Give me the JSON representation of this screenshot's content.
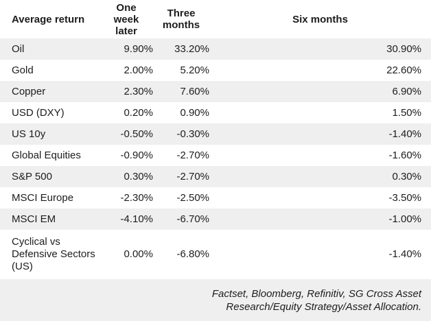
{
  "colors": {
    "stripe": "#efefef",
    "text": "#1c1c1c",
    "background": "#ffffff"
  },
  "table": {
    "headers": {
      "average_return": "Average return",
      "one_week": "One week later",
      "three_months": "Three months",
      "six_months": "Six months"
    },
    "rows": [
      {
        "label": "Oil",
        "one_week": "9.90%",
        "three_months": "33.20%",
        "six_months": "30.90%"
      },
      {
        "label": "Gold",
        "one_week": "2.00%",
        "three_months": "5.20%",
        "six_months": "22.60%"
      },
      {
        "label": "Copper",
        "one_week": "2.30%",
        "three_months": "7.60%",
        "six_months": "6.90%"
      },
      {
        "label": "USD (DXY)",
        "one_week": "0.20%",
        "three_months": "0.90%",
        "six_months": "1.50%"
      },
      {
        "label": "US 10y",
        "one_week": "-0.50%",
        "three_months": "-0.30%",
        "six_months": "-1.40%"
      },
      {
        "label": "Global Equities",
        "one_week": "-0.90%",
        "three_months": "-2.70%",
        "six_months": "-1.60%"
      },
      {
        "label": "S&P 500",
        "one_week": "0.30%",
        "three_months": "-2.70%",
        "six_months": "0.30%"
      },
      {
        "label": "MSCI Europe",
        "one_week": "-2.30%",
        "three_months": "-2.50%",
        "six_months": "-3.50%"
      },
      {
        "label": "MSCI EM",
        "one_week": "-4.10%",
        "three_months": "-6.70%",
        "six_months": "-1.00%"
      },
      {
        "label": "Cyclical vs Defensive Sectors (US)",
        "one_week": "0.00%",
        "three_months": "-6.80%",
        "six_months": "-1.40%"
      }
    ],
    "source_note": "Factset, Bloomberg, Refinitiv, SG Cross Asset Research/Equity Strategy/Asset Allocation."
  },
  "chart_data": {
    "type": "table",
    "title": "Average return",
    "columns": [
      "Average return",
      "One week later",
      "Three months",
      "Six months"
    ],
    "rows": [
      [
        "Oil",
        9.9,
        33.2,
        30.9
      ],
      [
        "Gold",
        2.0,
        5.2,
        22.6
      ],
      [
        "Copper",
        2.3,
        7.6,
        6.9
      ],
      [
        "USD (DXY)",
        0.2,
        0.9,
        1.5
      ],
      [
        "US 10y",
        -0.5,
        -0.3,
        -1.4
      ],
      [
        "Global Equities",
        -0.9,
        -2.7,
        -1.6
      ],
      [
        "S&P 500",
        0.3,
        -2.7,
        0.3
      ],
      [
        "MSCI Europe",
        -2.3,
        -2.5,
        -3.5
      ],
      [
        "MSCI EM",
        -4.1,
        -6.7,
        -1.0
      ],
      [
        "Cyclical vs Defensive Sectors (US)",
        0.0,
        -6.8,
        -1.4
      ]
    ],
    "units": "percent",
    "source": "Factset, Bloomberg, Refinitiv, SG Cross Asset Research/Equity Strategy/Asset Allocation.",
    "layout": "striped rows, numeric columns right-aligned, source note bottom-right italic"
  }
}
